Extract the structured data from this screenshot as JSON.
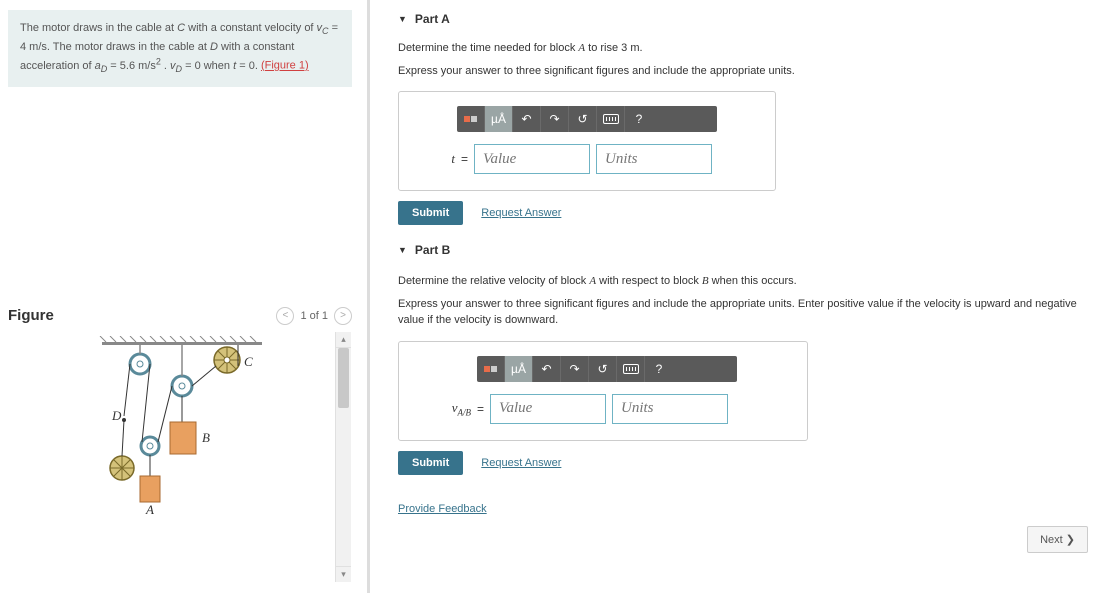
{
  "problem": {
    "text_html": "The motor draws in the cable at <i>C</i> with a constant velocity of <i>v<sub>C</sub></i> = 4 m/s. The motor draws in the cable at <i>D</i> with a constant acceleration of <i>a<sub>D</sub></i> = 5.6 m/s<sup>2</sup> . <i>v<sub>D</sub></i> = 0 when <i>t</i> = 0. ",
    "figure_link_text": "(Figure 1)"
  },
  "figure": {
    "title": "Figure",
    "pager": "1 of 1",
    "labels": {
      "A": "A",
      "B": "B",
      "C": "C",
      "D": "D"
    }
  },
  "partA": {
    "title": "Part A",
    "prompt1_html": "Determine the time needed for block <span class='mth'>A</span> to rise 3 m.",
    "prompt2_html": "Express your answer to three significant figures and include the appropriate units.",
    "var_label": "t",
    "value_placeholder": "Value",
    "units_placeholder": "Units",
    "submit": "Submit",
    "request": "Request Answer",
    "toolbar": {
      "mu": "µÅ",
      "undo": "↶",
      "redo": "↷",
      "reset": "↺",
      "help": "?"
    }
  },
  "partB": {
    "title": "Part B",
    "prompt1_html": "Determine the relative velocity of block <span class='mth'>A</span> with respect to block <span class='mth'>B</span> when this occurs.",
    "prompt2_html": "Express your answer to three significant figures and include the appropriate units. Enter positive value if the velocity is upward and negative value if the velocity is downward.",
    "var_label_html": "v<sub>A/B</sub>",
    "value_placeholder": "Value",
    "units_placeholder": "Units",
    "submit": "Submit",
    "request": "Request Answer",
    "toolbar": {
      "mu": "µÅ",
      "undo": "↶",
      "redo": "↷",
      "reset": "↺",
      "help": "?"
    }
  },
  "feedback_link": "Provide Feedback",
  "next_btn": "Next ❯",
  "colors": {
    "problem_bg": "#e8f0f0",
    "submit_bg": "#37738c",
    "input_border": "#6fb3c4",
    "toolbar_bg": "#5a5a5a"
  }
}
